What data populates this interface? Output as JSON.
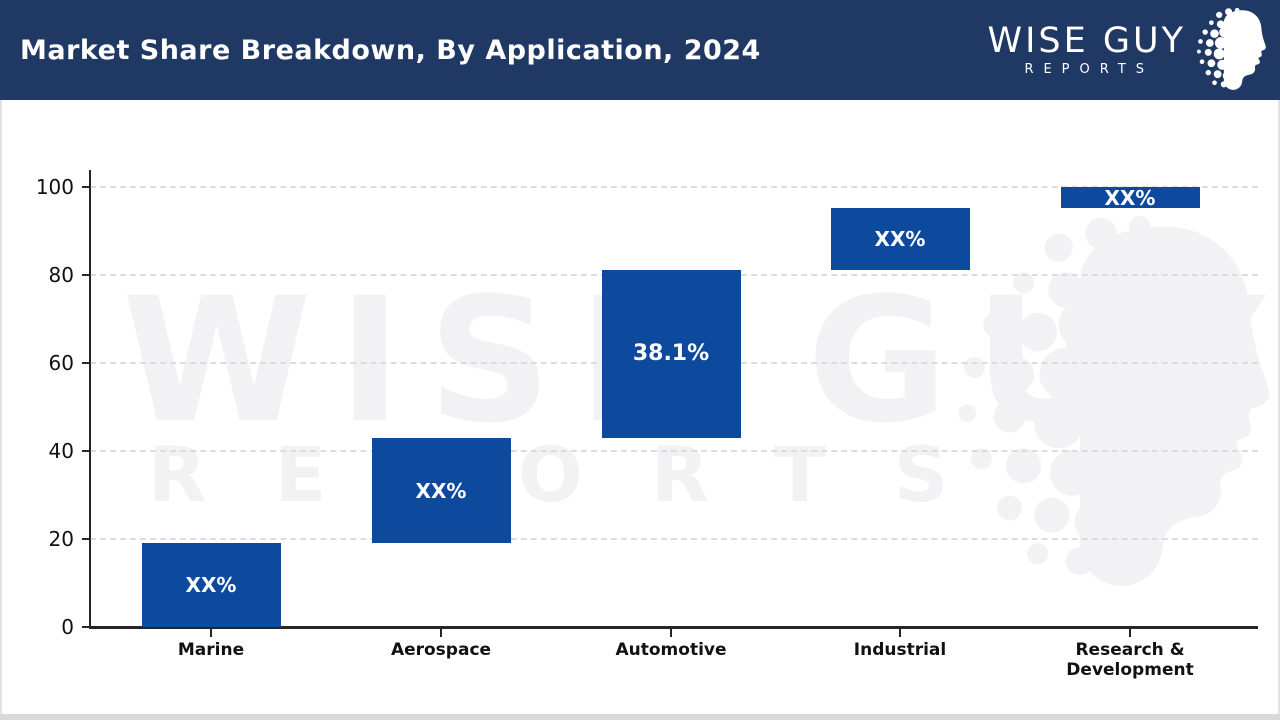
{
  "header": {
    "title": "Market Share Breakdown, By Application, 2024",
    "bg_color": "#1f3864"
  },
  "logo": {
    "line1": "WISE GUY",
    "line2": "REPORTS"
  },
  "watermark": {
    "line1": "WISE GUY",
    "line2": "REPORTS",
    "color": "#f2f2f4"
  },
  "chart_data": {
    "type": "bar",
    "subtype": "waterfall-floating-bars",
    "title": "Market Share Breakdown, By Application, 2024",
    "xlabel": "",
    "ylabel": "",
    "ylim": [
      0,
      100
    ],
    "yticks": [
      0,
      20,
      40,
      60,
      80,
      100
    ],
    "grid": "horizontal-dashed",
    "bar_color": "#0d4a9e",
    "categories": [
      "Marine",
      "Aerospace",
      "Automotive",
      "Industrial",
      "Research &\nDevelopment"
    ],
    "segments": [
      {
        "category": "Marine",
        "start": 0,
        "end": 19,
        "value_label": "XX%"
      },
      {
        "category": "Aerospace",
        "start": 19,
        "end": 43,
        "value_label": "XX%"
      },
      {
        "category": "Automotive",
        "start": 43,
        "end": 81.1,
        "value_label": "38.1%"
      },
      {
        "category": "Industrial",
        "start": 81.1,
        "end": 95.2,
        "value_label": "XX%"
      },
      {
        "category": "Research &\nDevelopment",
        "start": 95.2,
        "end": 100,
        "value_label": "XX%"
      }
    ]
  }
}
